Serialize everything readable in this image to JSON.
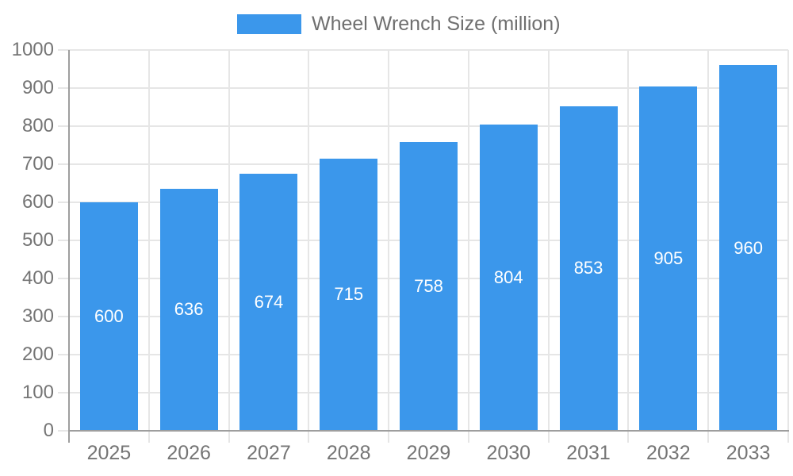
{
  "legend": {
    "position": "top",
    "items": [
      {
        "label": "Wheel Wrench Size (million)",
        "color": "#3b97eb"
      }
    ]
  },
  "chart_data": {
    "type": "bar",
    "categories": [
      "2025",
      "2026",
      "2027",
      "2028",
      "2029",
      "2030",
      "2031",
      "2032",
      "2033"
    ],
    "series": [
      {
        "name": "Wheel Wrench Size (million)",
        "values": [
          600,
          636,
          674,
          715,
          758,
          804,
          853,
          905,
          960
        ],
        "color": "#3b97eb"
      }
    ],
    "value_labels": {
      "visible": true,
      "position": "inside-center",
      "color": "#ffffff"
    },
    "xlabel": "",
    "ylabel": "",
    "ylim": [
      0,
      1000
    ],
    "ytick_step": 100,
    "ytick_labels": [
      "0",
      "100",
      "200",
      "300",
      "400",
      "500",
      "600",
      "700",
      "800",
      "900",
      "1000"
    ],
    "grid": {
      "horizontal": true,
      "vertical": true,
      "color": "#e6e6e6"
    },
    "axis": {
      "line_color": "#9e9e9e",
      "tick_label_color": "#757575"
    },
    "legend_position": "top"
  }
}
